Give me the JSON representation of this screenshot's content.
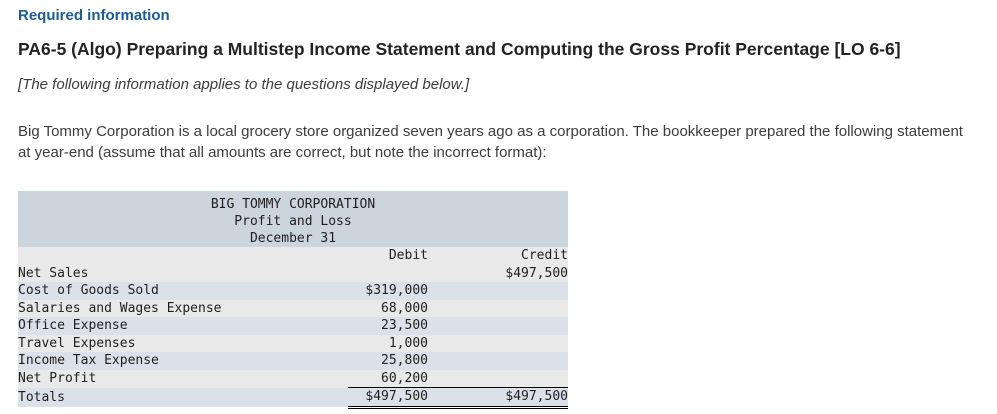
{
  "header": {
    "required_info": "Required information",
    "title": "PA6-5 (Algo) Preparing a Multistep Income Statement and Computing the Gross Profit Percentage [LO 6-6]",
    "note": "[The following information applies to the questions displayed below.]",
    "description": "Big Tommy Corporation is a local grocery store organized seven years ago as a corporation. The bookkeeper prepared the following statement at year-end (assume that all amounts are correct, but note the incorrect format):"
  },
  "statement": {
    "company": "BIG TOMMY CORPORATION",
    "title": "Profit and Loss",
    "date": "December 31",
    "columns": {
      "debit": "Debit",
      "credit": "Credit"
    },
    "rows": [
      {
        "label": "Net Sales",
        "debit": "",
        "credit": "$497,500"
      },
      {
        "label": "Cost of Goods Sold",
        "debit": "$319,000",
        "credit": ""
      },
      {
        "label": "Salaries and Wages Expense",
        "debit": "68,000",
        "credit": ""
      },
      {
        "label": "Office Expense",
        "debit": "23,500",
        "credit": ""
      },
      {
        "label": "Travel Expenses",
        "debit": "1,000",
        "credit": ""
      },
      {
        "label": "Income Tax Expense",
        "debit": "25,800",
        "credit": ""
      },
      {
        "label": "Net Profit",
        "debit": "60,200",
        "credit": ""
      },
      {
        "label": "Totals",
        "debit": "$497,500",
        "credit": "$497,500",
        "total": true
      }
    ]
  },
  "colors": {
    "required_info_blue": "#1d5b94",
    "table_header_bg": "#ccd4de",
    "row_light": "#e9e9e9",
    "row_shaded": "#dce1e9"
  }
}
